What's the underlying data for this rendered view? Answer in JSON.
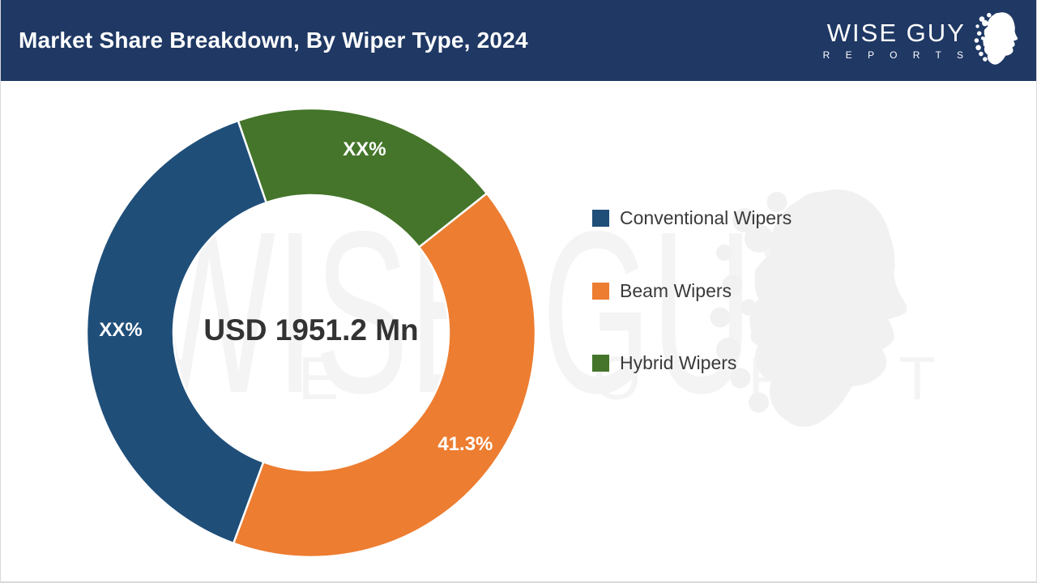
{
  "header": {
    "title": "Market Share Breakdown, By Wiper Type, 2024",
    "logo": {
      "line1": "WISE GUY",
      "line2": "R E P O R T S"
    }
  },
  "chart_data": {
    "type": "pie",
    "subtype": "donut",
    "title": "Market Share Breakdown, By Wiper Type, 2024",
    "center_label": "USD 1951.2 Mn",
    "start_angle_deg": -19,
    "direction_from_start": "clockwise, slices drawn in order hybrid, beam, conventional",
    "legend_position": "right",
    "slices": [
      {
        "name": "Conventional Wipers",
        "label": "XX%",
        "value_pct": 39.1,
        "value_shown": false,
        "color": "#1f4e79"
      },
      {
        "name": "Beam Wipers",
        "label": "41.3%",
        "value_pct": 41.3,
        "value_shown": true,
        "color": "#ed7d31"
      },
      {
        "name": "Hybrid Wipers",
        "label": "XX%",
        "value_pct": 19.6,
        "value_shown": false,
        "color": "#44752a"
      }
    ]
  },
  "watermark": {
    "line1": "WISE GUY",
    "line2": "R E P O R T S"
  },
  "colors": {
    "header_bg": "#1f3864",
    "conventional_blue": "#1f4e79",
    "beam_orange": "#ed7d31",
    "hybrid_green": "#44752a",
    "watermark_gray": "#f4f4f4",
    "center_text": "#333333",
    "legend_text": "#3a3a3a",
    "page_border": "#d9d9d9"
  }
}
